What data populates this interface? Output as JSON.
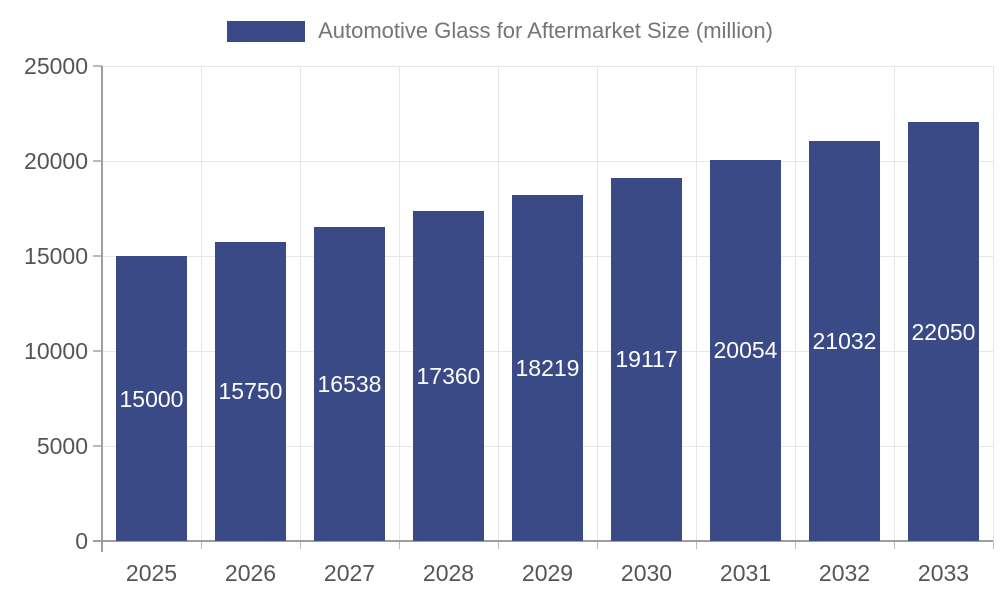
{
  "legend": {
    "label": "Automotive Glass for Aftermarket Size (million)"
  },
  "chart_data": {
    "type": "bar",
    "title": "",
    "categories": [
      "2025",
      "2026",
      "2027",
      "2028",
      "2029",
      "2030",
      "2031",
      "2032",
      "2033"
    ],
    "series": [
      {
        "name": "Automotive Glass for Aftermarket Size (million)",
        "values": [
          15000,
          15750,
          16538,
          17360,
          18219,
          19117,
          20054,
          21032,
          22050
        ]
      }
    ],
    "xlabel": "",
    "ylabel": "",
    "ylim": [
      0,
      25000
    ],
    "yticks": [
      0,
      5000,
      10000,
      15000,
      20000,
      25000
    ],
    "grid": true,
    "legend_position": "top",
    "value_labels": "inside-center"
  },
  "colors": {
    "bar": "#394A87",
    "bar_value_text": "#FFFFFF",
    "axis_line": "#9E9E9E",
    "tick_mark": "#BBBBBB",
    "grid_line": "#E6E6E6",
    "axis_text": "#555555",
    "legend_text": "#757575",
    "background": "#FFFFFF"
  }
}
